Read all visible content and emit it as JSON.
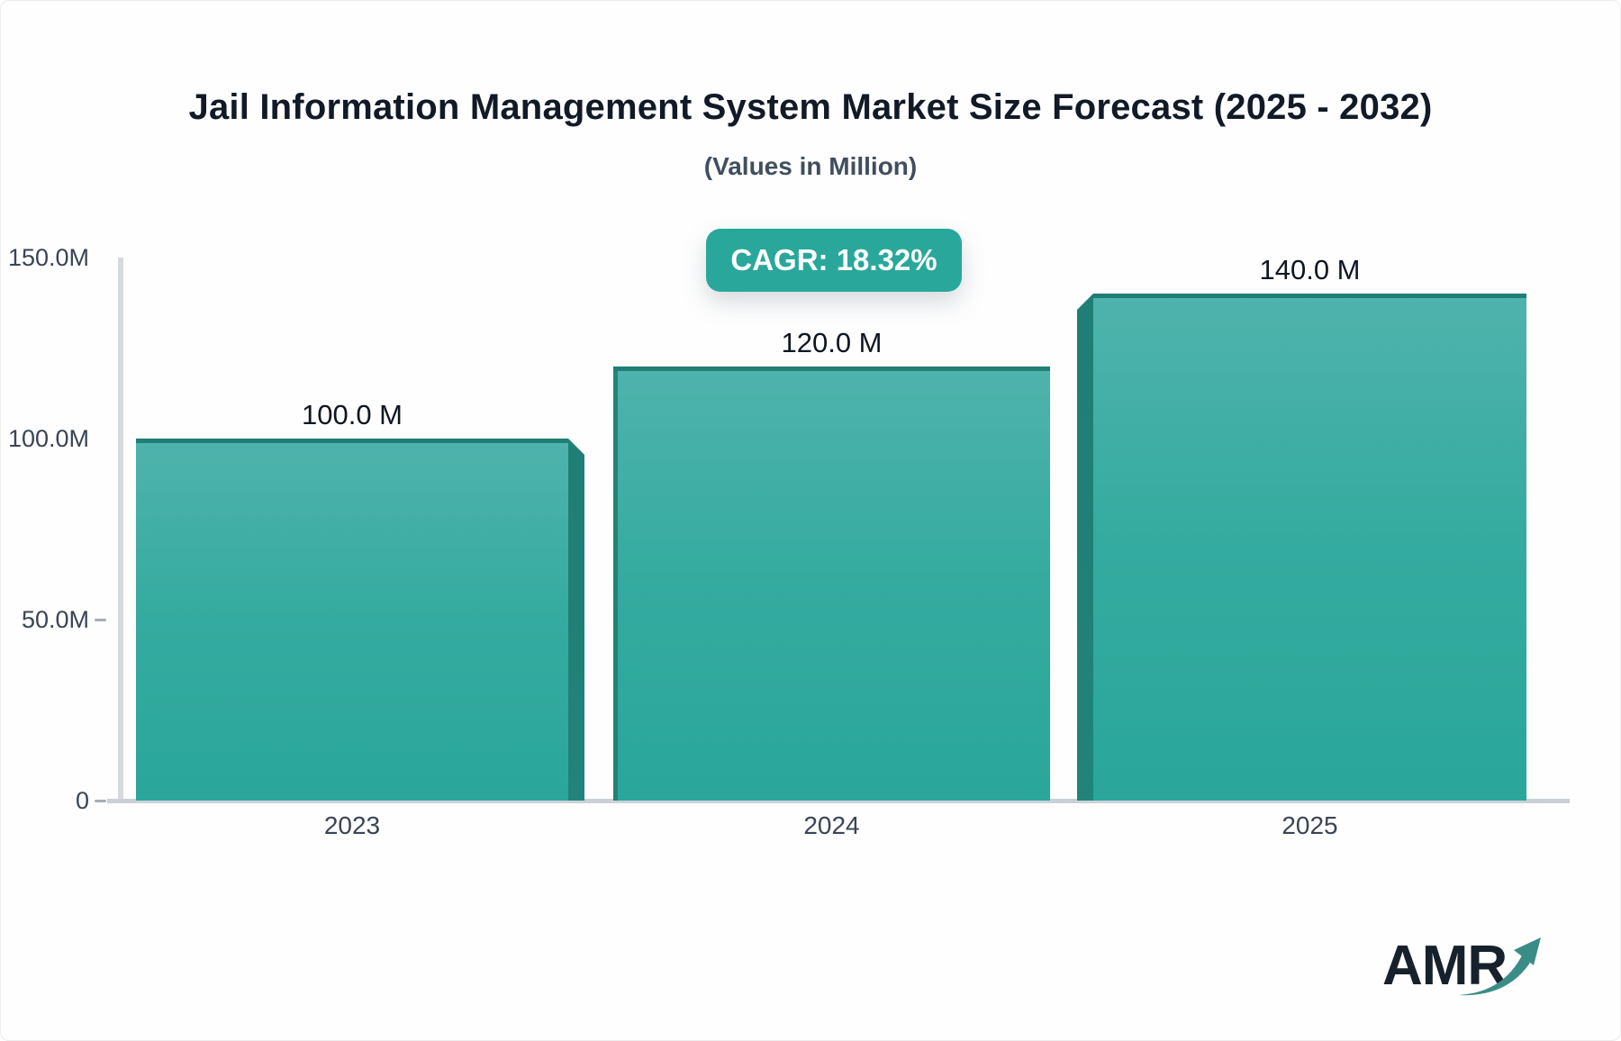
{
  "header": {
    "title": "Jail Information Management System Market Size Forecast (2025 - 2032)",
    "subtitle": "(Values in Million)"
  },
  "badge": {
    "label": "CAGR: 18.32%"
  },
  "logo": {
    "text": "AMR"
  },
  "colors": {
    "bar_gradient_top": "#4FB3AC",
    "bar_gradient_bottom": "#2AA69A",
    "bar_edge_dark": "#1F7E76",
    "badge_bg": "#2AA79B",
    "axis_line": "#D6D9DE",
    "baseline": "#CBD0D8",
    "tick_dash": "#A7ADB8",
    "title_text": "#111A26",
    "subtitle_text": "#414E5E",
    "axis_text": "#3A4454",
    "value_text": "#0E1621",
    "logo_text": "#16212B",
    "logo_arrow": "#3A8D86"
  },
  "chart_data": {
    "type": "bar",
    "title": "Jail Information Management System Market Size Forecast (2025 - 2032)",
    "subtitle": "(Values in Million)",
    "unit": "Million (M)",
    "categories": [
      "2023",
      "2024",
      "2025"
    ],
    "values": [
      100.0,
      120.0,
      140.0
    ],
    "value_labels": [
      "100.0 M",
      "120.0 M",
      "140.0 M"
    ],
    "cagr_percent": 18.32,
    "cagr_label": "CAGR: 18.32%",
    "ylim": [
      0,
      150
    ],
    "yticks": [
      {
        "label": "150.0M",
        "value": 150,
        "dash": false
      },
      {
        "label": "100.0M",
        "value": 100,
        "dash": false
      },
      {
        "label": "50.0M",
        "value": 50,
        "dash": true
      },
      {
        "label": "0",
        "value": 0,
        "dash": true
      }
    ],
    "grid": false,
    "legend": false
  }
}
